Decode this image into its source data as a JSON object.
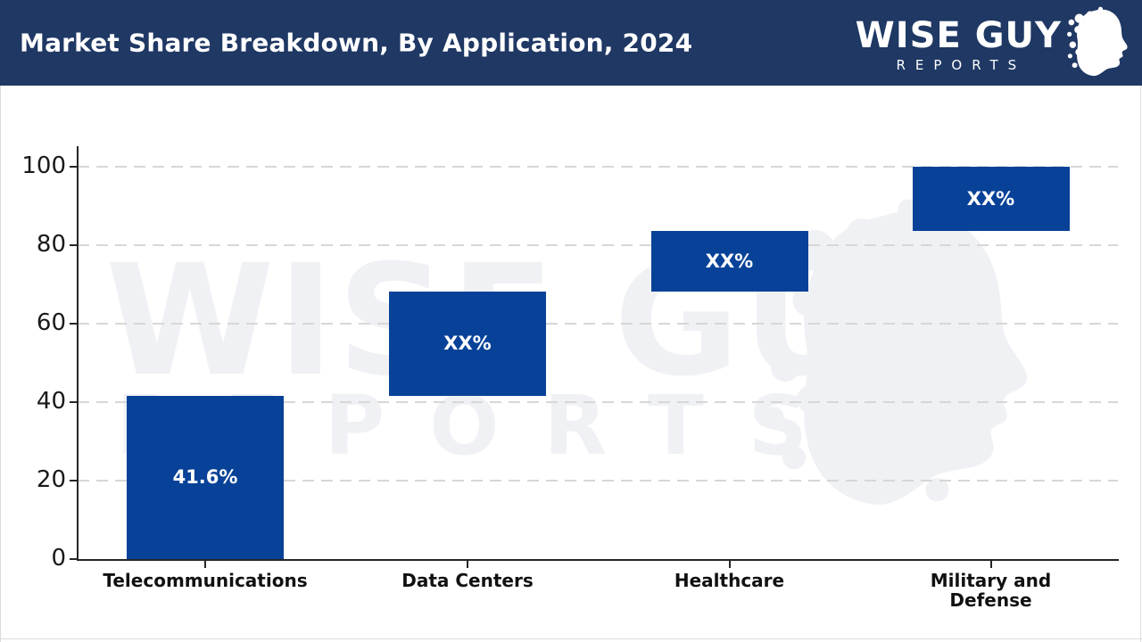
{
  "header": {
    "title": "Market Share Breakdown, By Application, 2024",
    "logo": {
      "name": "WISE GUY",
      "sub": "REPORTS"
    }
  },
  "watermark": {
    "big": "WISE GUY",
    "sub": "REPORTS"
  },
  "colors": {
    "header_bg": "#1f3864",
    "bar": "#084298",
    "grid": "#d7d7d7",
    "axis": "#262626",
    "watermark": "#f0f1f4",
    "bar_label": "#ffffff"
  },
  "chart_data": {
    "type": "bar",
    "subtype": "waterfall",
    "title": "Market Share Breakdown, By Application, 2024",
    "categories": [
      "Telecommunications",
      "Data Centers",
      "Healthcare",
      "Military and Defense"
    ],
    "categories_wrapped": [
      "Telecommunications",
      "Data Centers",
      "Healthcare",
      "Military and\nDefense"
    ],
    "segments": [
      {
        "category": "Telecommunications",
        "label": "41.6%",
        "start": 0,
        "end": 41.6
      },
      {
        "category": "Data Centers",
        "label": "XX%",
        "start": 41.6,
        "end": 68.2
      },
      {
        "category": "Healthcare",
        "label": "XX%",
        "start": 68.2,
        "end": 83.6
      },
      {
        "category": "Military and Defense",
        "label": "XX%",
        "start": 83.6,
        "end": 100
      }
    ],
    "bar_labels": [
      "41.6%",
      "XX%",
      "XX%",
      "XX%"
    ],
    "ylim": [
      0,
      100
    ],
    "yticks": [
      0,
      20,
      40,
      60,
      80,
      100
    ],
    "xlabel": "",
    "ylabel": "",
    "grid": "horizontal dashed",
    "legend": "none",
    "bar_color": "#084298"
  }
}
